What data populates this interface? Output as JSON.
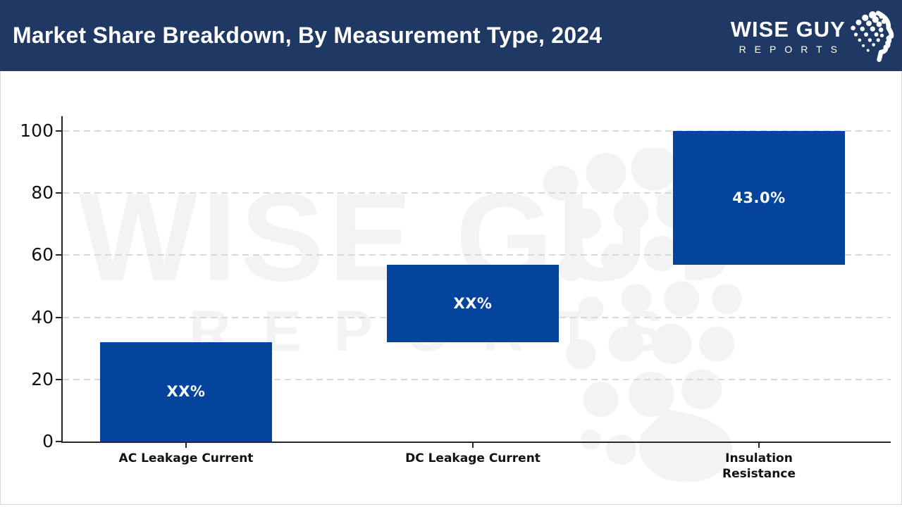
{
  "header": {
    "title": "Market Share Breakdown, By Measurement Type, 2024",
    "logo": {
      "line1": "WISE GUY",
      "line2": "REPORTS"
    }
  },
  "watermark": {
    "line1": "WISE GUY",
    "line2": "REPORTS"
  },
  "chart_data": {
    "type": "bar",
    "subtype": "floating-waterfall",
    "title": "Market Share Breakdown, By Measurement Type, 2024",
    "categories": [
      "AC Leakage Current",
      "DC Leakage Current",
      "Insulation\nResistance"
    ],
    "bars": [
      {
        "category": "AC Leakage Current",
        "start": 0,
        "end": 32,
        "height": 32,
        "label": "XX%"
      },
      {
        "category": "DC Leakage Current",
        "start": 32,
        "end": 57,
        "height": 25,
        "label": "XX%"
      },
      {
        "category": "Insulation Resistance",
        "start": 57,
        "end": 100,
        "height": 43,
        "label": "43.0%"
      }
    ],
    "ylim": [
      0,
      100
    ],
    "yticks": [
      0,
      20,
      40,
      60,
      80,
      100
    ],
    "grid": "horizontal-dashed",
    "legend": null,
    "bar_color": "#04449c",
    "bar_label_color": "#ffffff"
  },
  "colors": {
    "header_bg": "#1f3864",
    "bar": "#04449c",
    "gridline": "#d9d9d9",
    "axis": "#262626",
    "watermark": "#f2f3f5"
  }
}
